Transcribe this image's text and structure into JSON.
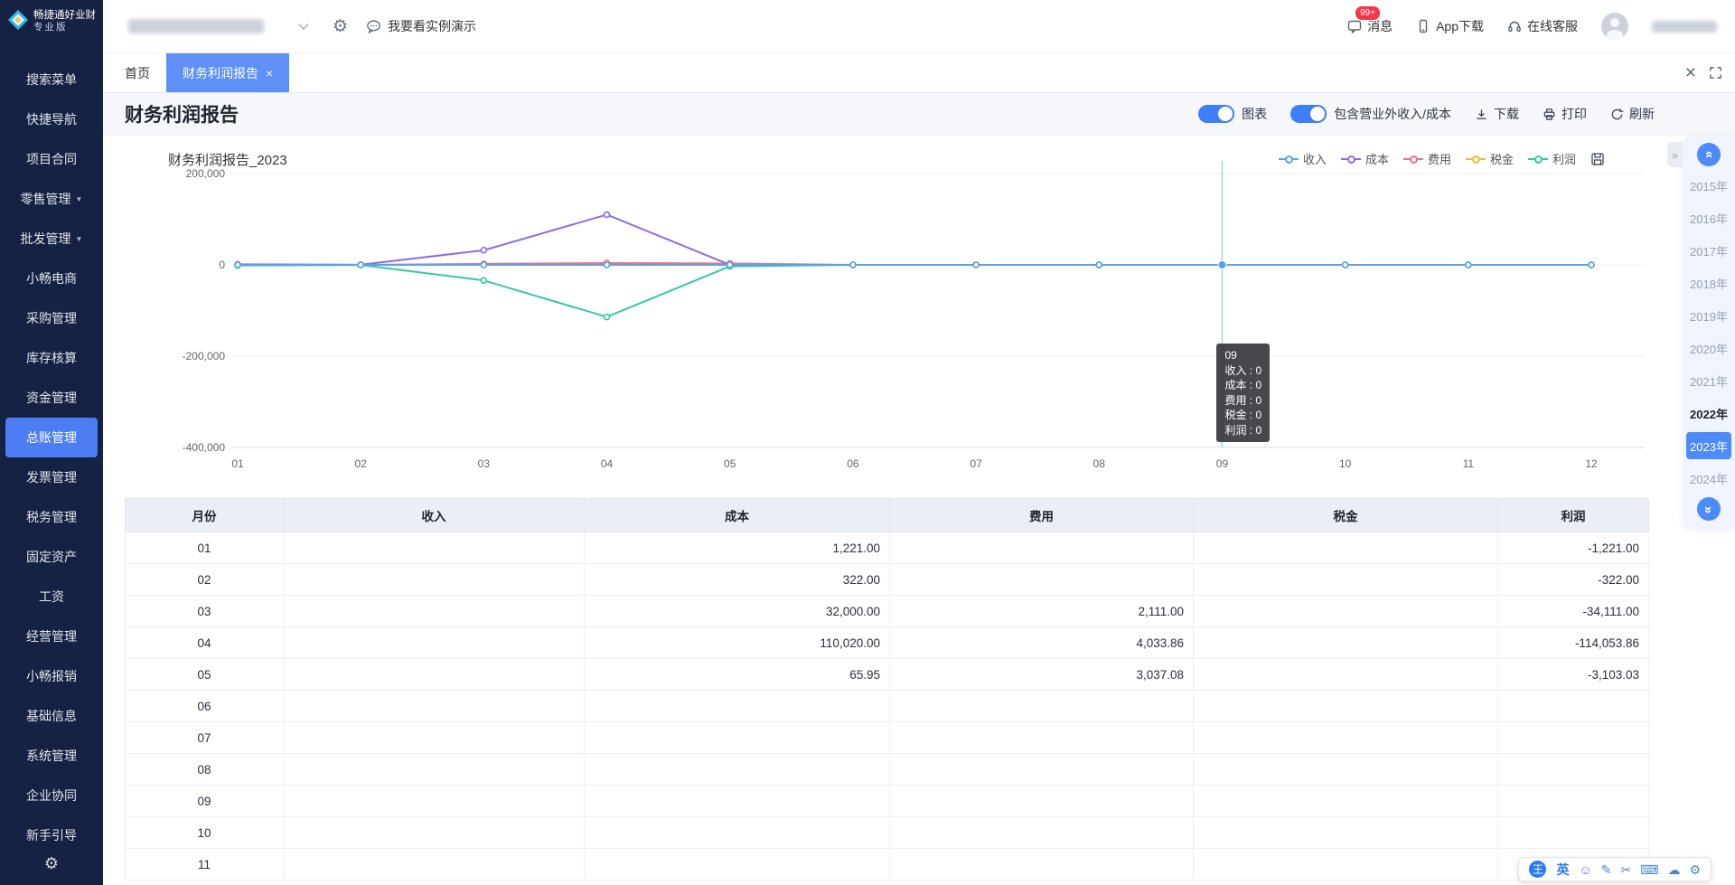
{
  "app": {
    "logo_line1": "畅捷通好业财",
    "logo_line2": "专业版"
  },
  "colors": {
    "accent": "#4d7df2",
    "badge_red": "#f5364a",
    "crosshair": "#9fd3f2",
    "active_tab": "#5f90f7"
  },
  "icons": {
    "gear": "⚙",
    "close": "×",
    "chevron_down_small": "▼",
    "collapse_right": "»",
    "double_chevron": "»"
  },
  "topbar": {
    "demo_text": "我要看实例演示",
    "messages": "消息",
    "messages_badge": "99+",
    "app_download": "App下载",
    "online_support": "在线客服"
  },
  "tabs": [
    {
      "label": "首页",
      "active": false,
      "closable": false
    },
    {
      "label": "财务利润报告",
      "active": true,
      "closable": true
    }
  ],
  "sidebar_items": [
    {
      "label": "搜索菜单"
    },
    {
      "label": "快捷导航"
    },
    {
      "label": "项目合同"
    },
    {
      "label": "零售管理",
      "expandable": true
    },
    {
      "label": "批发管理",
      "expandable": true
    },
    {
      "label": "小畅电商"
    },
    {
      "label": "采购管理"
    },
    {
      "label": "库存核算"
    },
    {
      "label": "资金管理"
    },
    {
      "label": "总账管理",
      "active": true
    },
    {
      "label": "发票管理"
    },
    {
      "label": "税务管理"
    },
    {
      "label": "固定资产"
    },
    {
      "label": "工资"
    },
    {
      "label": "经营管理"
    },
    {
      "label": "小畅报销"
    },
    {
      "label": "基础信息"
    },
    {
      "label": "系统管理"
    },
    {
      "label": "企业协同"
    },
    {
      "label": "新手引导"
    }
  ],
  "page": {
    "title": "财务利润报告",
    "controls": {
      "chart_toggle": {
        "label": "图表",
        "on": true
      },
      "include_toggle": {
        "label": "包含营业外收入/成本",
        "on": true
      },
      "download": "下载",
      "print": "打印",
      "refresh": "刷新"
    }
  },
  "chart_data": {
    "type": "line",
    "title": "财务利润报告_2023",
    "x": [
      "01",
      "02",
      "03",
      "04",
      "05",
      "06",
      "07",
      "08",
      "09",
      "10",
      "11",
      "12"
    ],
    "ylim": [
      -400000,
      200000
    ],
    "yticks": [
      {
        "value": 200000,
        "label": "200,000"
      },
      {
        "value": 0,
        "label": "0"
      },
      {
        "value": -200000,
        "label": "-200,000"
      },
      {
        "value": -400000,
        "label": "-400,000"
      }
    ],
    "grid": true,
    "legend_position": "top-right",
    "series": [
      {
        "name": "收入",
        "color": "#55a3e8",
        "values": [
          0,
          0,
          0,
          0,
          0,
          0,
          0,
          0,
          0,
          0,
          0,
          0
        ]
      },
      {
        "name": "成本",
        "color": "#8a6de9",
        "values": [
          1221,
          322,
          32000,
          110020,
          65.95,
          0,
          0,
          0,
          0,
          0,
          0,
          0
        ]
      },
      {
        "name": "费用",
        "color": "#e8718d",
        "values": [
          0,
          0,
          2111,
          4033.86,
          3037.08,
          0,
          0,
          0,
          0,
          0,
          0,
          0
        ]
      },
      {
        "name": "税金",
        "color": "#e9bb40",
        "values": [
          0,
          0,
          0,
          0,
          0,
          0,
          0,
          0,
          0,
          0,
          0,
          0
        ]
      },
      {
        "name": "利润",
        "color": "#33c9a2",
        "values": [
          -1221,
          -322,
          -34111,
          -114053.86,
          -3103.03,
          0,
          0,
          0,
          0,
          0,
          0,
          0
        ]
      }
    ],
    "tooltip": {
      "x_index": 8,
      "title": "09",
      "lines": [
        "收入 : 0",
        "成本 : 0",
        "费用 : 0",
        "税金 : 0",
        "利润 : 0"
      ]
    }
  },
  "table": {
    "columns": [
      {
        "label": "月份",
        "align": "center"
      },
      {
        "label": "收入",
        "align": "right"
      },
      {
        "label": "成本",
        "align": "right"
      },
      {
        "label": "费用",
        "align": "right"
      },
      {
        "label": "税金",
        "align": "right"
      },
      {
        "label": "利润",
        "align": "right"
      }
    ],
    "rows": [
      [
        "01",
        "",
        "1,221.00",
        "",
        "",
        "-1,221.00"
      ],
      [
        "02",
        "",
        "322.00",
        "",
        "",
        "-322.00"
      ],
      [
        "03",
        "",
        "32,000.00",
        "2,111.00",
        "",
        "-34,111.00"
      ],
      [
        "04",
        "",
        "110,020.00",
        "4,033.86",
        "",
        "-114,053.86"
      ],
      [
        "05",
        "",
        "65.95",
        "3,037.08",
        "",
        "-3,103.03"
      ],
      [
        "06",
        "",
        "",
        "",
        "",
        ""
      ],
      [
        "07",
        "",
        "",
        "",
        "",
        ""
      ],
      [
        "08",
        "",
        "",
        "",
        "",
        ""
      ],
      [
        "09",
        "",
        "",
        "",
        "",
        ""
      ],
      [
        "10",
        "",
        "",
        "",
        "",
        ""
      ],
      [
        "11",
        "",
        "",
        "",
        "",
        ""
      ]
    ]
  },
  "year_panel": {
    "years": [
      {
        "label": "2015年"
      },
      {
        "label": "2016年"
      },
      {
        "label": "2017年"
      },
      {
        "label": "2018年"
      },
      {
        "label": "2019年"
      },
      {
        "label": "2020年"
      },
      {
        "label": "2021年"
      },
      {
        "label": "2022年",
        "emphasized": true
      },
      {
        "label": "2023年",
        "active": true
      },
      {
        "label": "2024年"
      }
    ]
  },
  "ime": {
    "brand": "王",
    "mode": "英",
    "tools": [
      {
        "name": "emoji-icon",
        "glyph": "☺"
      },
      {
        "name": "handwriting-icon",
        "glyph": "✎"
      },
      {
        "name": "screenshot-icon",
        "glyph": "✂"
      },
      {
        "name": "keyboard-icon",
        "glyph": "⌨"
      },
      {
        "name": "cloud-icon",
        "glyph": "☁"
      },
      {
        "name": "settings-icon",
        "glyph": "⚙"
      }
    ]
  }
}
